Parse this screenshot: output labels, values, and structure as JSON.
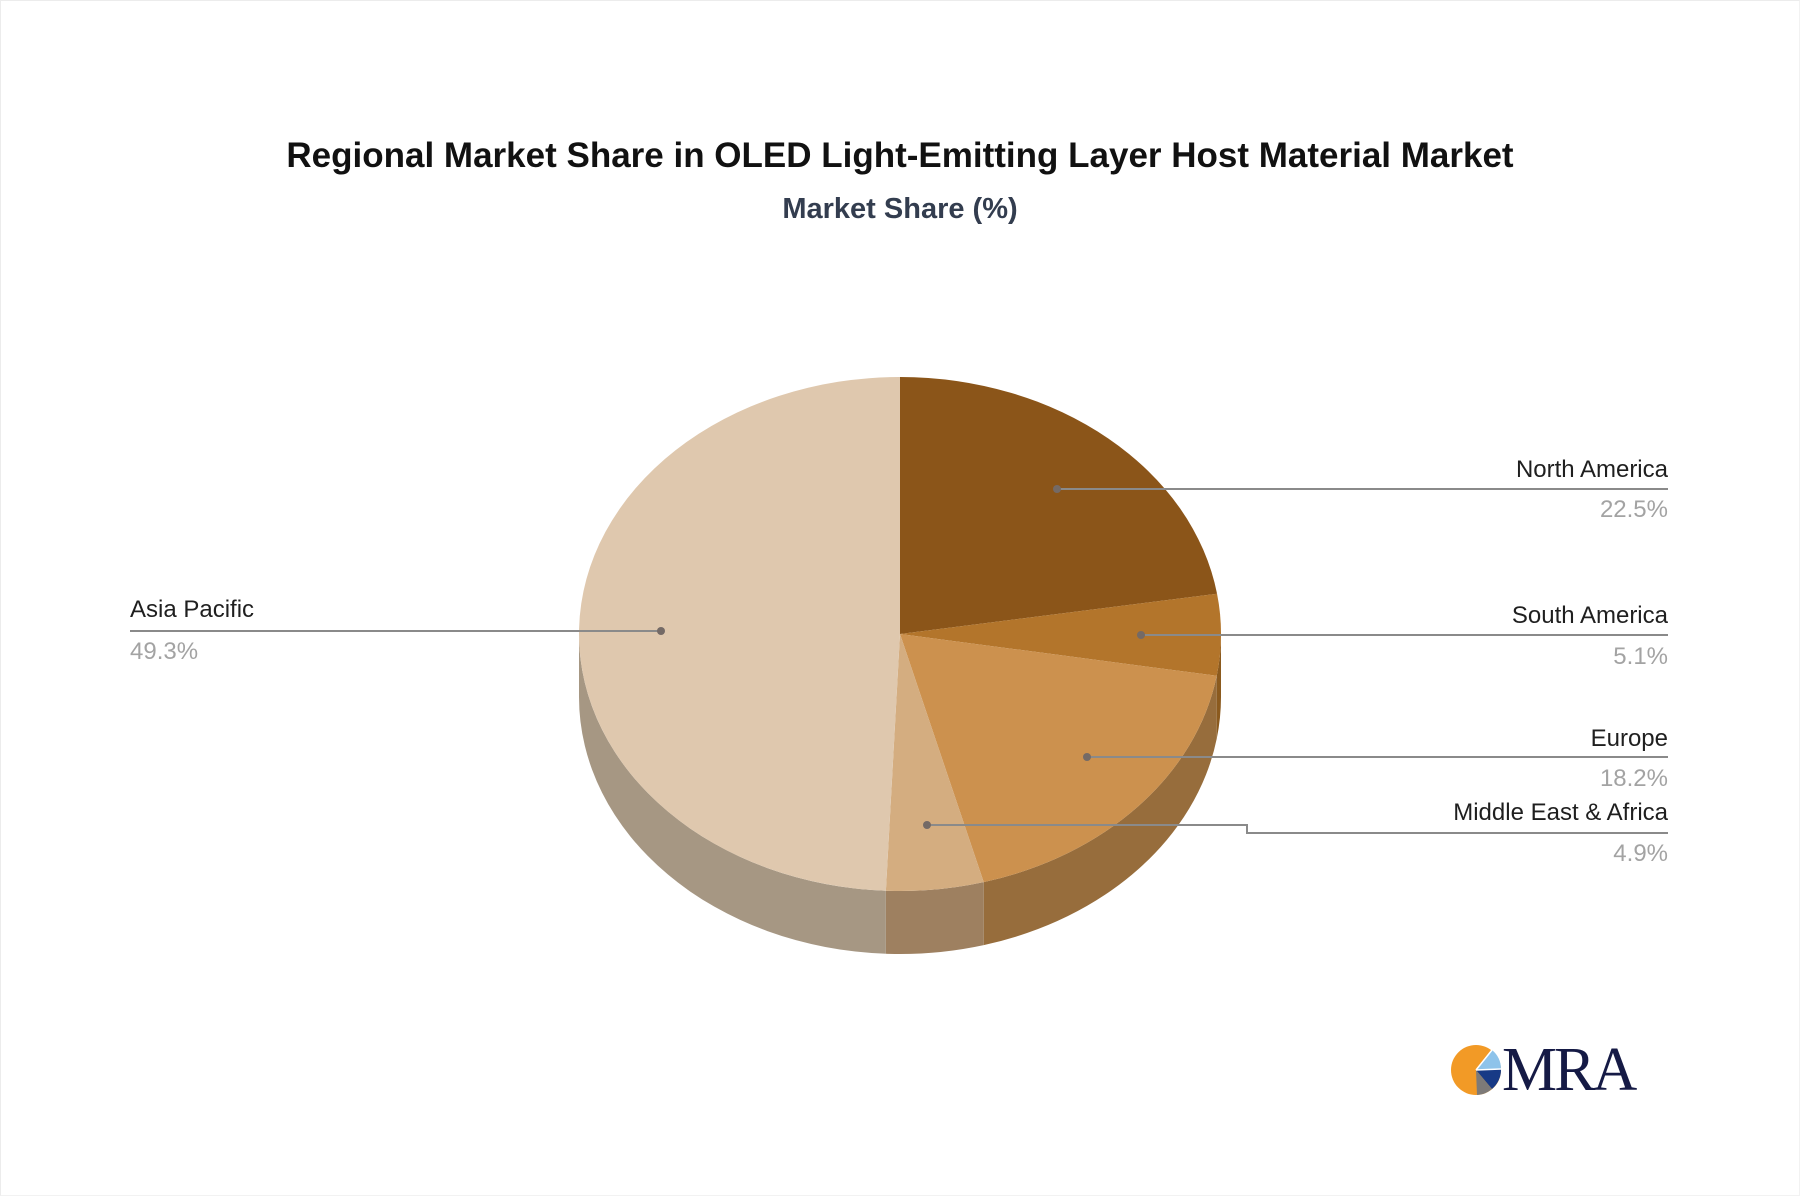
{
  "chart_data": {
    "type": "pie",
    "title": "Regional Market Share in OLED Light-Emitting Layer Host Material Market",
    "subtitle": "Market Share (%)",
    "categories": [
      "North America",
      "South America",
      "Europe",
      "Middle East & Africa",
      "Asia Pacific"
    ],
    "values": [
      22.5,
      5.1,
      18.2,
      4.9,
      49.3
    ],
    "labels": [
      "22.5%",
      "5.1%",
      "18.2%",
      "4.9%",
      "49.3%"
    ],
    "colors": [
      "#8b5519",
      "#b3752b",
      "#cc914e",
      "#d4ad80",
      "#dfc8ae"
    ],
    "side_colors": [
      "#6e4414",
      "#8b5a1e",
      "#976d3c",
      "#9e8060",
      "#a69783"
    ],
    "start_angle_deg": 0,
    "direction": "clockwise",
    "style": "3d",
    "legend": "none (callout labels)"
  },
  "header": {
    "title": "Regional Market Share in OLED Light-Emitting Layer Host Material Market",
    "subtitle": "Market Share (%)"
  },
  "callouts": [
    {
      "name": "North America",
      "value": "22.5%"
    },
    {
      "name": "South America",
      "value": "5.1%"
    },
    {
      "name": "Europe",
      "value": "18.2%"
    },
    {
      "name": "Middle East & Africa",
      "value": "4.9%"
    },
    {
      "name": "Asia Pacific",
      "value": "49.3%"
    }
  ],
  "logo": {
    "text": "MRA",
    "colors": {
      "orange": "#f29a26",
      "light_blue": "#8ec3ea",
      "navy": "#173a86",
      "grey": "#7d7a78",
      "text": "#151a45"
    }
  }
}
